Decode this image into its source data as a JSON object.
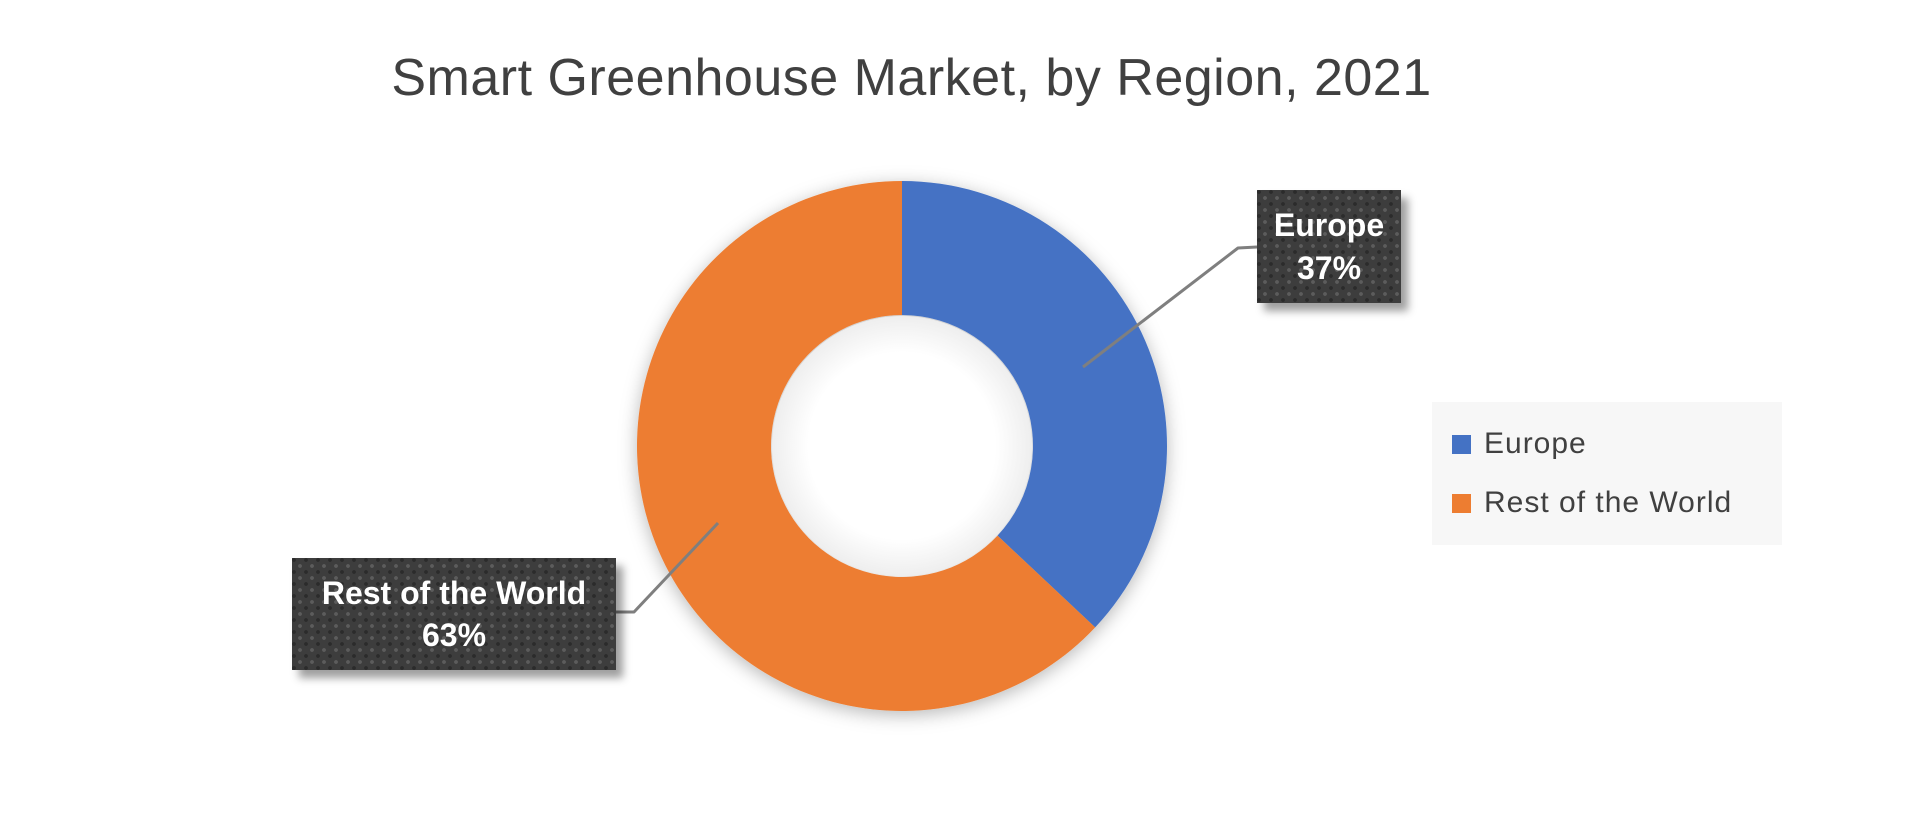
{
  "title": "Smart Greenhouse Market, by Region, 2021",
  "chart_data": {
    "type": "pie",
    "subtype": "donut",
    "title": "Smart Greenhouse Market, by Region, 2021",
    "categories": [
      "Europe",
      "Rest of the World"
    ],
    "values": [
      37,
      63
    ],
    "unit": "%",
    "colors": [
      "#4472C4",
      "#ED7D31"
    ],
    "start_angle_deg": 0,
    "direction": "clockwise",
    "legend_position": "right",
    "data_labels": [
      {
        "category": "Europe",
        "text": "Europe",
        "value_text": "37%"
      },
      {
        "category": "Rest of the World",
        "text": "Rest of the World",
        "value_text": "63%"
      }
    ]
  },
  "callouts": {
    "europe": {
      "label": "Europe",
      "value": "37%"
    },
    "rest_of_world": {
      "label": "Rest of the World",
      "value": "63%"
    }
  },
  "legend": {
    "items": [
      {
        "label": "Europe",
        "color": "#4472C4"
      },
      {
        "label": "Rest of the World",
        "color": "#ED7D31"
      }
    ]
  },
  "colors": {
    "europe_slice": "#4472C4",
    "rest_of_world_slice": "#ED7D31",
    "callout_background": "#3d3d3d",
    "callout_text": "#ffffff",
    "leader_line": "#7f7f7f",
    "title_text": "#404040",
    "legend_background": "#f7f7f7",
    "page_background": "#ffffff"
  }
}
